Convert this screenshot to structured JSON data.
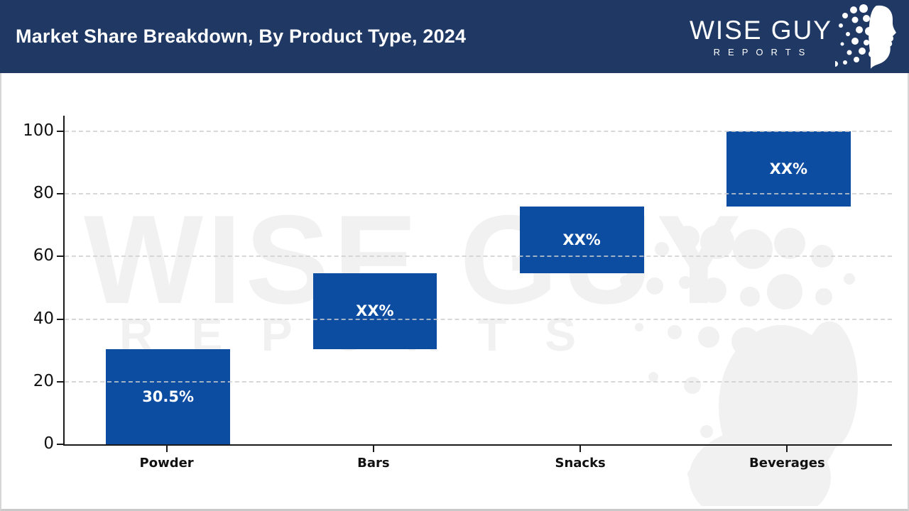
{
  "header": {
    "title": "Market Share Breakdown, By Product Type, 2024",
    "logo_line1": "WISE GUY",
    "logo_line2": "REPORTS"
  },
  "watermark": {
    "line1": "WISE GUY",
    "line2": "REPORTS"
  },
  "chart_data": {
    "type": "bar",
    "subtype": "waterfall-floating-bars",
    "title": "Market Share Breakdown, By Product Type, 2024",
    "categories": [
      "Powder",
      "Bars",
      "Snacks",
      "Beverages"
    ],
    "segments": [
      {
        "category": "Powder",
        "start": 0,
        "end": 30.5,
        "label": "30.5%"
      },
      {
        "category": "Bars",
        "start": 30.5,
        "end": 54.7,
        "label": "XX%"
      },
      {
        "category": "Snacks",
        "start": 54.7,
        "end": 76,
        "label": "XX%"
      },
      {
        "category": "Beverages",
        "start": 76,
        "end": 100,
        "label": "XX%"
      }
    ],
    "xlabel": "",
    "ylabel": "",
    "ylim": [
      0,
      105
    ],
    "yticks": [
      0,
      20,
      40,
      60,
      80,
      100
    ],
    "grid": "horizontal-dashed",
    "legend": "none"
  },
  "colors": {
    "header_bg": "#1f3864",
    "bar": "#0c4da2",
    "bar_label": "#ffffff",
    "title_text": "#ffffff",
    "axis": "#1a1a1a",
    "grid": "#cdcdcd",
    "watermark": "#f1f1f2",
    "frame": "#d6d6d6"
  }
}
